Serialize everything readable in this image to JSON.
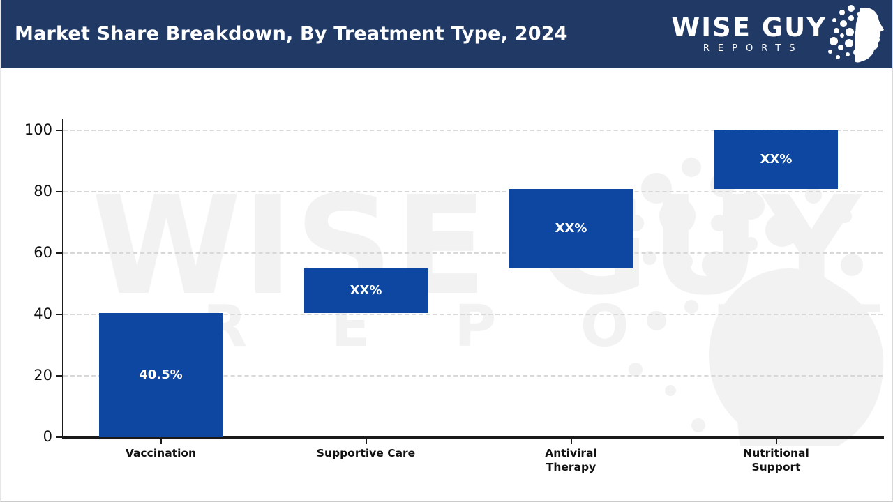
{
  "header": {
    "title": "Market Share Breakdown, By Treatment Type, 2024",
    "logo": {
      "line1": "WISE GUY",
      "line2": "REPORTS"
    }
  },
  "watermark": {
    "line1": "WISE GUY",
    "line2": "R E P O R T S"
  },
  "chart_data": {
    "type": "bar",
    "subtype": "waterfall",
    "title": "Market Share Breakdown, By Treatment Type, 2024",
    "xlabel": "",
    "ylabel": "",
    "ylim": [
      0,
      100
    ],
    "yticks": [
      0,
      20,
      40,
      60,
      80,
      100
    ],
    "grid": "horizontal-dashed",
    "legend": "none",
    "bar_color": "#0d47a1",
    "bar_label_color": "#ffffff",
    "categories": [
      "Vaccination",
      "Supportive Care",
      "Antiviral Therapy",
      "Nutritional Support"
    ],
    "segments": [
      {
        "category": "Vaccination",
        "start": 0,
        "end": 40.5,
        "label": "40.5%"
      },
      {
        "category": "Supportive Care",
        "start": 40.5,
        "end": 55,
        "label": "XX%"
      },
      {
        "category": "Antiviral Therapy",
        "start": 55,
        "end": 81,
        "label": "XX%"
      },
      {
        "category": "Nutritional Support",
        "start": 81,
        "end": 100,
        "label": "XX%"
      }
    ]
  }
}
